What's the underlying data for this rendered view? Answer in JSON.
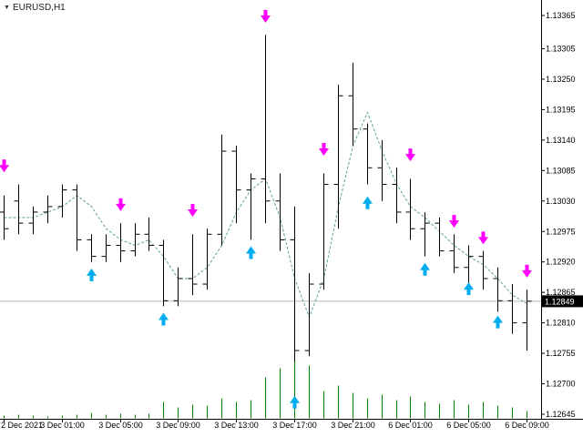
{
  "window": {
    "marker": "▼",
    "symbol_label": "EURUSD,H1"
  },
  "colors": {
    "background": "#ffffff",
    "bar": "#000000",
    "ma_line": "#5f9ea0",
    "volume": "#008000",
    "sell_arrow": "#ff00ff",
    "buy_arrow": "#00aeef",
    "price_line": "#b8b8b8",
    "badge_bg": "#000000",
    "badge_text": "#ffffff",
    "axis_text": "#000000"
  },
  "chart_data": {
    "type": "ohlc-bar",
    "title": "EURUSD,H1",
    "symbol": "EURUSD",
    "timeframe": "H1",
    "ylim": [
      1.12645,
      1.13365
    ],
    "current_price": "1.12849",
    "price_axis_labels": [
      "1.13365",
      "1.13305",
      "1.13250",
      "1.13195",
      "1.13140",
      "1.13085",
      "1.13030",
      "1.12975",
      "1.12920",
      "1.12865",
      "1.12810",
      "1.12755",
      "1.12700",
      "1.12645"
    ],
    "time_axis_labels": [
      {
        "index": 0,
        "label": "2 Dec 2021"
      },
      {
        "index": 4,
        "label": "3 Dec 01:00"
      },
      {
        "index": 8,
        "label": "3 Dec 05:00"
      },
      {
        "index": 12,
        "label": "3 Dec 09:00"
      },
      {
        "index": 16,
        "label": "3 Dec 13:00"
      },
      {
        "index": 20,
        "label": "3 Dec 17:00"
      },
      {
        "index": 24,
        "label": "3 Dec 21:00"
      },
      {
        "index": 28,
        "label": "6 Dec 01:00"
      },
      {
        "index": 32,
        "label": "6 Dec 05:00"
      },
      {
        "index": 36,
        "label": "6 Dec 09:00"
      }
    ],
    "bars": {
      "open": [
        1.1301,
        1.1303,
        1.1299,
        1.1301,
        1.1302,
        1.1305,
        1.1296,
        1.1293,
        1.1295,
        1.1294,
        1.1297,
        1.1295,
        1.1285,
        1.1289,
        1.1288,
        1.1297,
        1.1312,
        1.1305,
        1.1307,
        1.1303,
        1.1296,
        1.1276,
        1.1288,
        1.1306,
        1.1322,
        1.1316,
        1.1309,
        1.1306,
        1.1301,
        1.1298,
        1.1299,
        1.1294,
        1.1291,
        1.1293,
        1.1289,
        1.1285,
        1.1281
      ],
      "high": [
        1.1304,
        1.1306,
        1.1302,
        1.1304,
        1.1306,
        1.1306,
        1.1297,
        1.1297,
        1.1299,
        1.1299,
        1.13,
        1.1296,
        1.1291,
        1.1297,
        1.1298,
        1.1315,
        1.1313,
        1.1308,
        1.1333,
        1.1308,
        1.1302,
        1.129,
        1.1308,
        1.1324,
        1.1328,
        1.1317,
        1.1314,
        1.1309,
        1.1307,
        1.1301,
        1.13,
        1.1297,
        1.1295,
        1.1294,
        1.1291,
        1.1288,
        1.1287
      ],
      "low": [
        1.1296,
        1.1297,
        1.1297,
        1.1299,
        1.13,
        1.1294,
        1.1292,
        1.1292,
        1.1292,
        1.1293,
        1.1294,
        1.1284,
        1.1284,
        1.1286,
        1.1287,
        1.1295,
        1.1299,
        1.1296,
        1.1299,
        1.1294,
        1.1274,
        1.1275,
        1.1287,
        1.1298,
        1.1313,
        1.1306,
        1.1303,
        1.1299,
        1.1296,
        1.1293,
        1.1293,
        1.129,
        1.1288,
        1.1287,
        1.1283,
        1.1279,
        1.1276
      ],
      "close": [
        1.1298,
        1.1299,
        1.1301,
        1.1302,
        1.1305,
        1.1296,
        1.1293,
        1.1295,
        1.1294,
        1.1297,
        1.1295,
        1.1285,
        1.1289,
        1.1288,
        1.1297,
        1.1312,
        1.1305,
        1.1307,
        1.1303,
        1.1296,
        1.1276,
        1.1288,
        1.1306,
        1.1322,
        1.1316,
        1.1309,
        1.1306,
        1.1301,
        1.1298,
        1.1299,
        1.1294,
        1.1291,
        1.1293,
        1.1289,
        1.1285,
        1.1281,
        1.12849
      ]
    },
    "ma_dotted": [
      1.13,
      1.13,
      1.13,
      1.1301,
      1.1302,
      1.1304,
      1.1302,
      1.1298,
      1.1296,
      1.1295,
      1.1296,
      1.1293,
      1.1289,
      1.1289,
      1.1291,
      1.1295,
      1.1301,
      1.1305,
      1.1307,
      1.13,
      1.1289,
      1.1282,
      1.1289,
      1.1302,
      1.1313,
      1.1319,
      1.1312,
      1.1306,
      1.1302,
      1.13,
      1.12975,
      1.1295,
      1.1293,
      1.12915,
      1.1289,
      1.1286,
      1.12845
    ],
    "volume_relative": [
      3,
      4,
      3,
      2,
      3,
      4,
      6,
      4,
      5,
      4,
      5,
      18,
      12,
      15,
      14,
      22,
      18,
      20,
      45,
      55,
      65,
      58,
      30,
      36,
      28,
      22,
      26,
      20,
      24,
      18,
      16,
      20,
      15,
      18,
      14,
      12,
      8
    ],
    "signals": {
      "sell": [
        {
          "index": 0,
          "price": 1.1309
        },
        {
          "index": 8,
          "price": 1.1302
        },
        {
          "index": 13,
          "price": 1.1301
        },
        {
          "index": 18,
          "price": 1.1336
        },
        {
          "index": 22,
          "price": 1.1312
        },
        {
          "index": 28,
          "price": 1.1311
        },
        {
          "index": 31,
          "price": 1.1299
        },
        {
          "index": 33,
          "price": 1.1296
        },
        {
          "index": 36,
          "price": 1.129
        }
      ],
      "buy": [
        {
          "index": 6,
          "price": 1.129
        },
        {
          "index": 11,
          "price": 1.1282
        },
        {
          "index": 17,
          "price": 1.1294
        },
        {
          "index": 20,
          "price": 1.1267
        },
        {
          "index": 25,
          "price": 1.1303
        },
        {
          "index": 29,
          "price": 1.1291
        },
        {
          "index": 32,
          "price": 1.12875
        },
        {
          "index": 34,
          "price": 1.12815
        }
      ]
    }
  }
}
